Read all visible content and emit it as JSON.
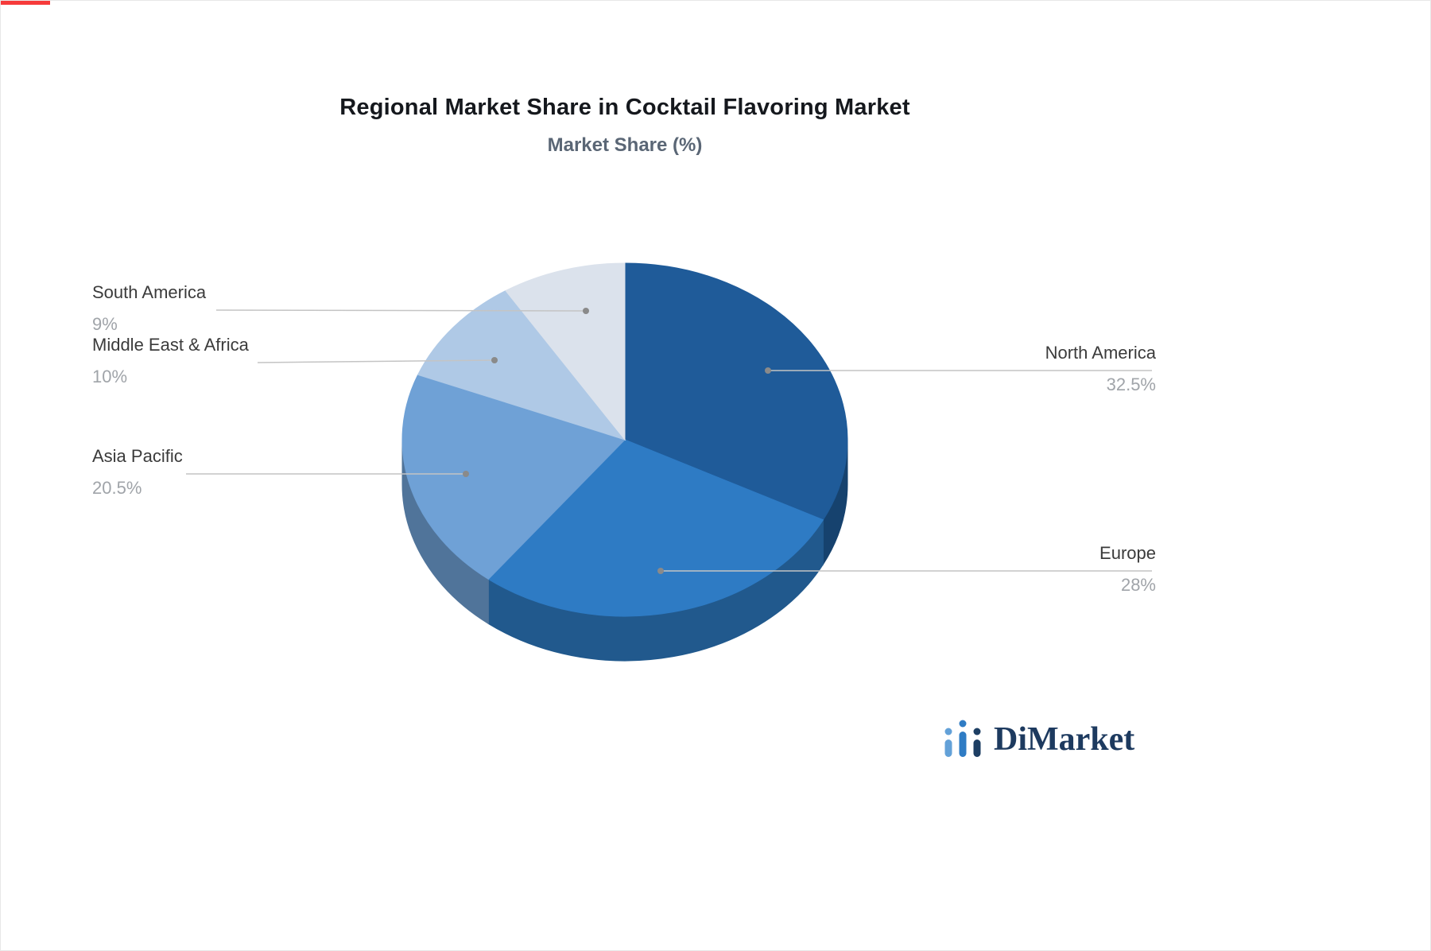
{
  "page": {
    "title": "Regional Market Share in Cocktail Flavoring Market",
    "subtitle": "Market Share (%)"
  },
  "logo": {
    "text": "DiMarket",
    "icon": "bar-chart-icon",
    "icon_color_1": "#63a1d8",
    "icon_color_2": "#2f7cc4",
    "icon_color_3": "#1d3e63",
    "text_color": "#1d3a5f"
  },
  "chart_data": {
    "type": "pie",
    "effect": "3d",
    "title": "Regional Market Share in Cocktail Flavoring Market",
    "subtitle": "Market Share (%)",
    "unit": "%",
    "direction": "clockwise",
    "start_angle_deg": 0,
    "legend_position": "callout-labels",
    "labels": [
      "North America",
      "Europe",
      "Asia Pacific",
      "Middle East & Africa",
      "South America"
    ],
    "values": [
      32.5,
      28,
      20.5,
      10,
      9
    ],
    "value_labels": [
      "32.5%",
      "28%",
      "20.5%",
      "10%",
      "9%"
    ],
    "colors": [
      "#1f5b99",
      "#2e7bc4",
      "#6fa1d6",
      "#afc9e6",
      "#dbe2ec"
    ],
    "callout_line_color": "#c4c4c4",
    "callout_dot_color": "#8a8a8a"
  }
}
